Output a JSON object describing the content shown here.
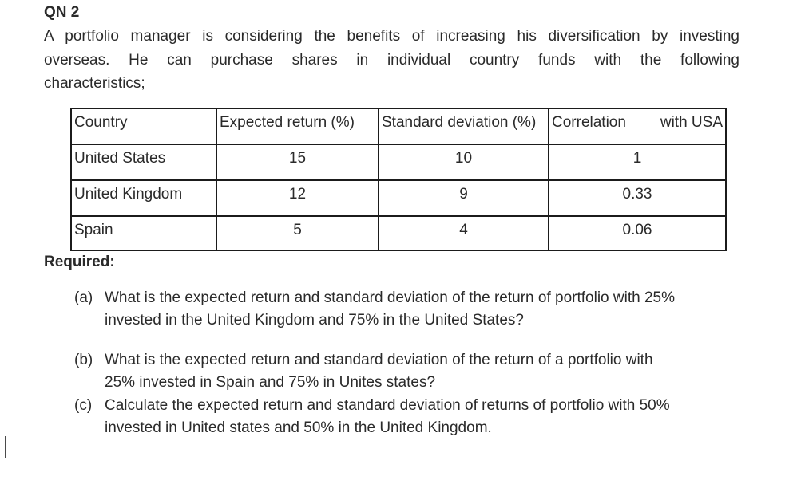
{
  "document": {
    "question_number": "QN 2",
    "intro": {
      "line1": "A portfolio manager is considering the benefits of increasing his diversification by investing",
      "line2": "overseas. He can purchase shares in individual country funds with the following",
      "line3": "characteristics;"
    },
    "table": {
      "headers": {
        "country": "Country",
        "expected_return": "Expected return (%)",
        "std_deviation": "Standard deviation (%)",
        "correlation": "Correlation",
        "correlation_suffix": "with USA"
      },
      "rows": [
        {
          "country": "United States",
          "expected_return": "15",
          "std_deviation": "10",
          "correlation": "1"
        },
        {
          "country": "United Kingdom",
          "expected_return": "12",
          "std_deviation": "9",
          "correlation": "0.33"
        },
        {
          "country": "Spain",
          "expected_return": "5",
          "std_deviation": "4",
          "correlation": "0.06"
        }
      ]
    },
    "required_label": "Required:",
    "questions": [
      {
        "marker": "(a)",
        "lines": [
          "What is the expected return and standard deviation of the return of portfolio with 25%",
          "invested in the United Kingdom and 75% in the United States?"
        ]
      },
      {
        "marker": "(b)",
        "lines": [
          "What is the expected return and standard deviation of the return of a portfolio with",
          "25% invested in Spain and 75% in Unites states?"
        ]
      },
      {
        "marker": "(c)",
        "lines": [
          "Calculate the expected return and standard deviation of returns of portfolio with 50%",
          "invested in United states and 50% in the United Kingdom."
        ]
      }
    ]
  },
  "colors": {
    "background": "#ffffff",
    "text": "#2a2a2a",
    "table_border": "#1b1b1b",
    "caret": "#4a4a4a"
  }
}
